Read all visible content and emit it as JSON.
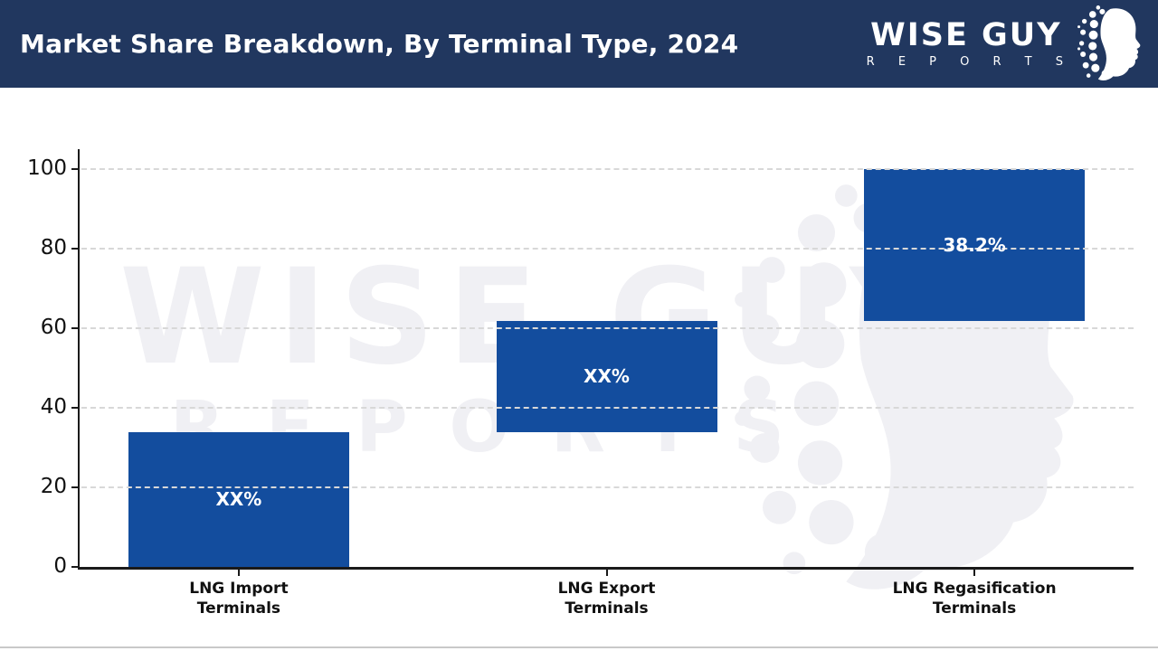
{
  "header": {
    "title": "Market Share Breakdown, By Terminal Type, 2024",
    "brand": {
      "line1": "WISE GUY",
      "line2": "R E P O R T S"
    }
  },
  "watermark": {
    "line1": "WISE GUY",
    "line2": "REPORTS"
  },
  "colors": {
    "header_bg": "#21375F",
    "bar": "#134D9E",
    "grid": "#D8D8D8",
    "axis": "#1A1A1A",
    "watermark": "#F0F0F4"
  },
  "chart_data": {
    "type": "bar",
    "subtype": "floating-waterfall",
    "title": "Market Share Breakdown, By Terminal Type, 2024",
    "categories": [
      "LNG Import\nTerminals",
      "LNG Export\nTerminals",
      "LNG Regasification\nTerminals"
    ],
    "bars": [
      {
        "category": "LNG Import Terminals",
        "start": 0,
        "end": 33.9,
        "value": 33.9,
        "label": "XX%"
      },
      {
        "category": "LNG Export Terminals",
        "start": 33.9,
        "end": 61.8,
        "value": 27.9,
        "label": "XX%"
      },
      {
        "category": "LNG Regasification Terminals",
        "start": 61.8,
        "end": 100,
        "value": 38.2,
        "label": "38.2%"
      }
    ],
    "xlabel": "",
    "ylabel": "",
    "y_ticks": [
      0,
      20,
      40,
      60,
      80,
      100
    ],
    "ylim": [
      0,
      105
    ],
    "grid": "horizontal-dashed",
    "grid_over_bars": true,
    "legend": null
  }
}
